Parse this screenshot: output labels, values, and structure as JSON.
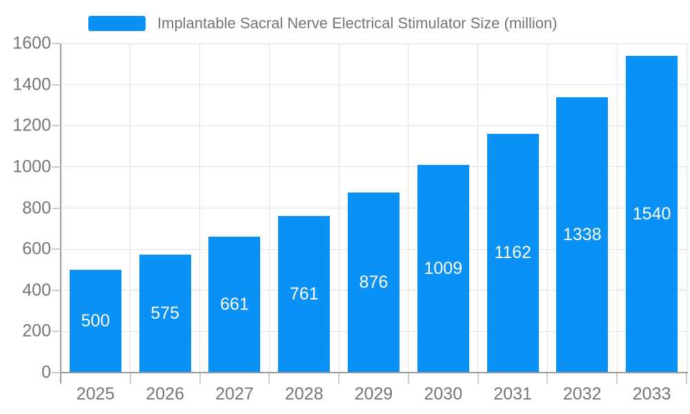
{
  "legend": {
    "label": "Implantable Sacral Nerve Electrical Stimulator Size (million)"
  },
  "chart_data": {
    "type": "bar",
    "title": "Implantable Sacral Nerve Electrical Stimulator Size (million)",
    "categories": [
      "2025",
      "2026",
      "2027",
      "2028",
      "2029",
      "2030",
      "2031",
      "2032",
      "2033"
    ],
    "values": [
      500,
      575,
      661,
      761,
      876,
      1009,
      1162,
      1338,
      1540
    ],
    "series": [
      {
        "name": "Implantable Sacral Nerve Electrical Stimulator Size (million)",
        "values": [
          500,
          575,
          661,
          761,
          876,
          1009,
          1162,
          1338,
          1540
        ]
      }
    ],
    "xlabel": "",
    "ylabel": "",
    "ylim": [
      0,
      1600
    ],
    "y_ticks": [
      0,
      200,
      400,
      600,
      800,
      1000,
      1200,
      1400,
      1600
    ],
    "grid": true,
    "legend_position": "top",
    "value_labels": "inside-center"
  },
  "colors": {
    "bar": "#0a91f5",
    "text": "#757575",
    "grid": "#e2e2e2",
    "axis": "#999999",
    "tick": "#cccccc",
    "value_label": "#ffffff",
    "background": "#ffffff"
  }
}
